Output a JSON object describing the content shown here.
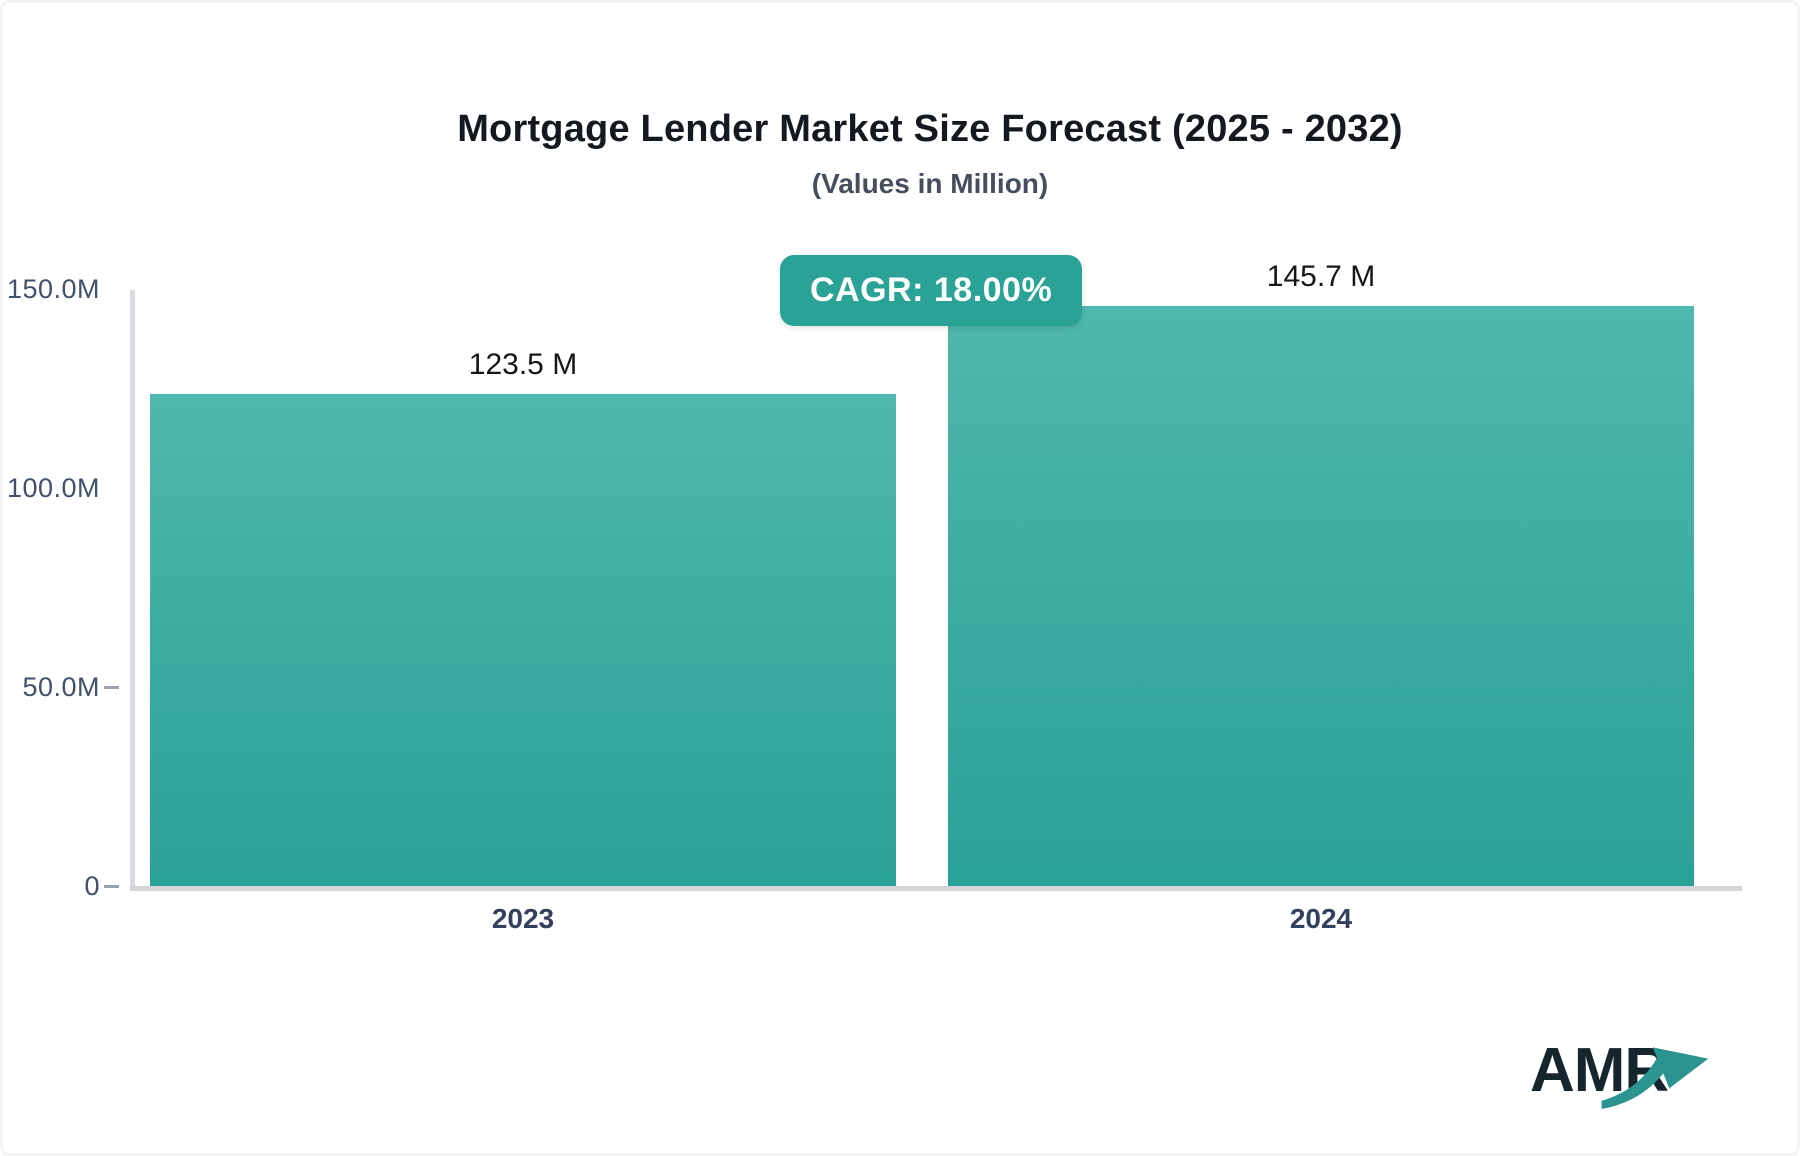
{
  "chart_data": {
    "type": "bar",
    "title": "Mortgage Lender Market Size Forecast (2025 - 2032)",
    "subtitle": "(Values in Million)",
    "categories": [
      "2023",
      "2024"
    ],
    "values": [
      123.5,
      145.7
    ],
    "value_labels": [
      "123.5 M",
      "145.7 M"
    ],
    "unit": "Million",
    "ylim": [
      0,
      150
    ],
    "y_ticks": [
      {
        "label": "150.0M",
        "value": 150,
        "dash": false
      },
      {
        "label": "100.0M",
        "value": 100,
        "dash": false
      },
      {
        "label": "50.0M",
        "value": 50,
        "dash": true
      },
      {
        "label": "0",
        "value": 0,
        "dash": true
      }
    ],
    "grid": false,
    "legend": false,
    "bar_color_top": "#4fb8ac",
    "bar_color_bottom": "#2aa197",
    "cagr_label": "CAGR: 18.00%",
    "badge_color": "#2aa396"
  },
  "logo": {
    "text": "AMR",
    "text_color": "#16262e",
    "arrow_color": "#2b9490"
  }
}
